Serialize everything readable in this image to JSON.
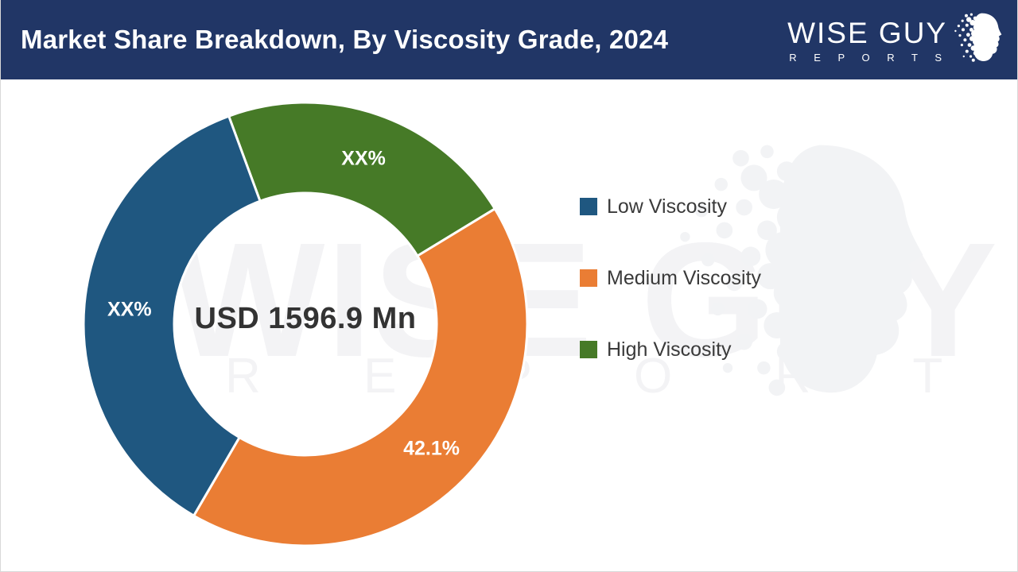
{
  "header": {
    "title": "Market Share Breakdown, By Viscosity Grade, 2024",
    "logo": {
      "line1": "WISE GUY",
      "line2": "R E P O R T S"
    }
  },
  "watermark": {
    "line1": "WISE GUY",
    "line2": "R E P O R T S"
  },
  "colors": {
    "header_bg": "#213666",
    "low_viscosity": "#1F5780",
    "medium_viscosity": "#EA7D34",
    "high_viscosity": "#467A27",
    "center_text": "#333333",
    "watermark": "#f3f3f5"
  },
  "chart_data": {
    "type": "pie",
    "donut": true,
    "title": "Market Share Breakdown, By Viscosity Grade, 2024",
    "center_label": "USD 1596.9 Mn",
    "legend_position": "right",
    "start_angle_deg": -20.2,
    "draw_order": [
      2,
      1,
      0
    ],
    "segments": [
      {
        "name": "Low Viscosity",
        "value_pct": 36.0,
        "label": "XX%",
        "color": "#1F5780"
      },
      {
        "name": "Medium Viscosity",
        "value_pct": 42.1,
        "label": "42.1%",
        "color": "#EA7D34"
      },
      {
        "name": "High Viscosity",
        "value_pct": 21.9,
        "label": "XX%",
        "color": "#467A27"
      }
    ]
  }
}
